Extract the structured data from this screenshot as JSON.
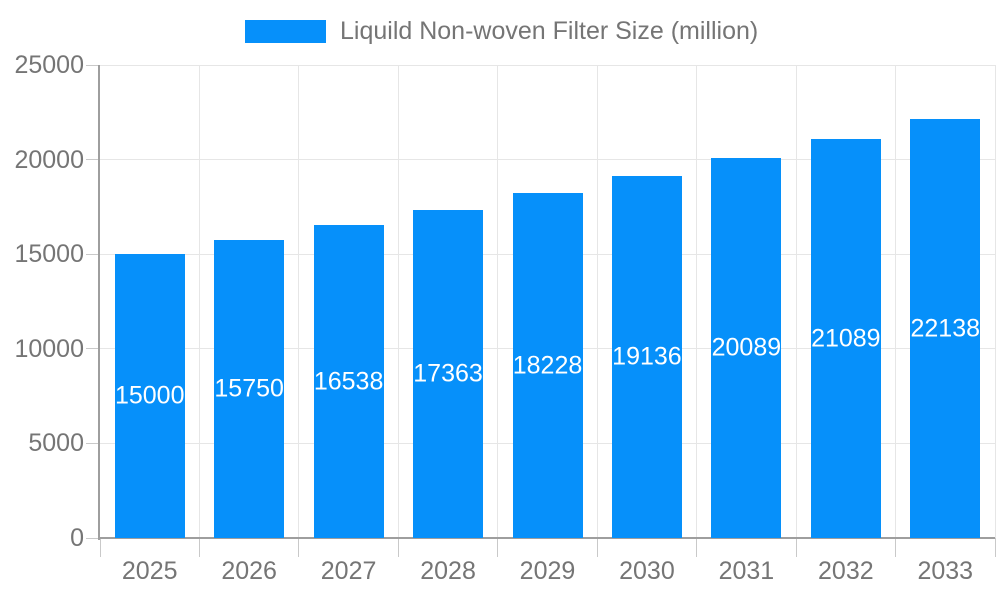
{
  "chart_data": {
    "type": "bar",
    "title": "Liquild Non-woven Filter Size (million)",
    "categories": [
      "2025",
      "2026",
      "2027",
      "2028",
      "2029",
      "2030",
      "2031",
      "2032",
      "2033"
    ],
    "values": [
      15000,
      15750,
      16538,
      17363,
      18228,
      19136,
      20089,
      21089,
      22138
    ],
    "xlabel": "",
    "ylabel": "",
    "ylim": [
      0,
      25000
    ],
    "yticks": [
      0,
      5000,
      10000,
      15000,
      20000,
      25000
    ],
    "grid": true,
    "legend_position": "top-center",
    "colors": {
      "bar": "#0690FA",
      "bar_label": "#FFFFFF",
      "grid": "#E6E6E6",
      "axis": "#9E9E9E",
      "tick_mark": "#C9C9C9",
      "text": "#757575",
      "background": "#FFFFFF"
    }
  }
}
